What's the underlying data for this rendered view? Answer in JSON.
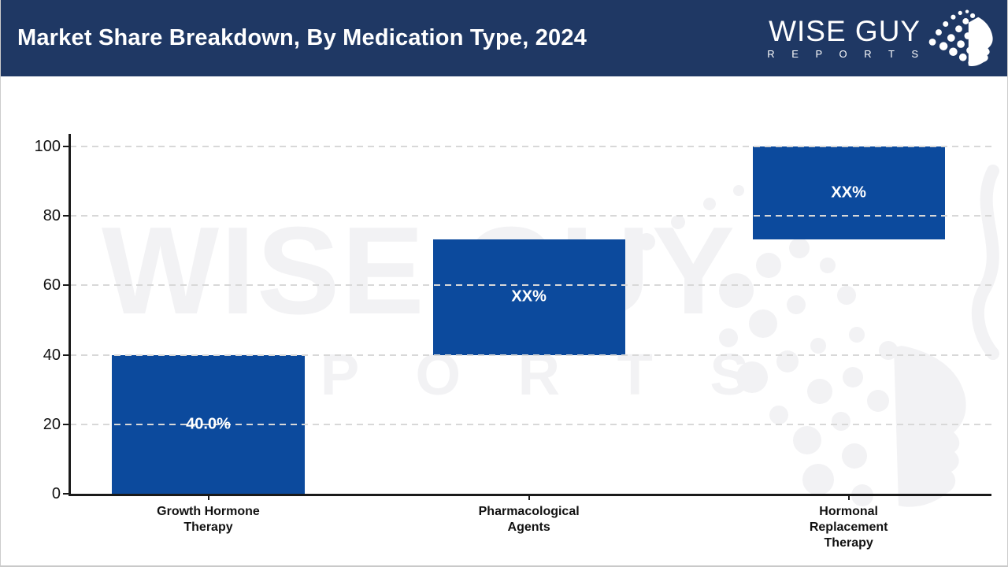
{
  "header": {
    "title": "Market Share Breakdown, By Medication Type, 2024",
    "bg_color": "#1F3864",
    "text_color": "#FFFFFF",
    "logo": {
      "wordmark": "WISE GUY",
      "subtext": "R E P O R T S"
    }
  },
  "watermark": {
    "wordmark": "WISE GUY",
    "subtext": "R E P O R T S"
  },
  "chart_data": {
    "type": "bar",
    "subtype": "waterfall",
    "title": "Market Share Breakdown, By Medication Type, 2024",
    "categories": [
      "Growth Hormone Therapy",
      "Pharmacological Agents",
      "Hormonal Replacement Therapy"
    ],
    "category_lines": [
      [
        "Growth Hormone",
        "Therapy"
      ],
      [
        "Pharmacological",
        "Agents"
      ],
      [
        "Hormonal",
        "Replacement",
        "Therapy"
      ]
    ],
    "segments": [
      {
        "category": "Growth Hormone Therapy",
        "start": 0,
        "end": 40,
        "label": "40.0%"
      },
      {
        "category": "Pharmacological Agents",
        "start": 40,
        "end": 73.3,
        "label": "XX%"
      },
      {
        "category": "Hormonal Replacement Therapy",
        "start": 73.3,
        "end": 100,
        "label": "XX%"
      }
    ],
    "ylim": [
      0,
      100
    ],
    "yticks": [
      0,
      20,
      40,
      60,
      80,
      100
    ],
    "xlabel": "",
    "ylabel": "",
    "legend": null,
    "grid": "horizontal-dashed-over-bars",
    "bar_color": "#0C4A9D",
    "bar_label_color": "#FFFFFF",
    "axis_color": "#1A1A1A",
    "gridline_color": "#D8D8D8",
    "watermark_color": "#F2F2F4"
  }
}
